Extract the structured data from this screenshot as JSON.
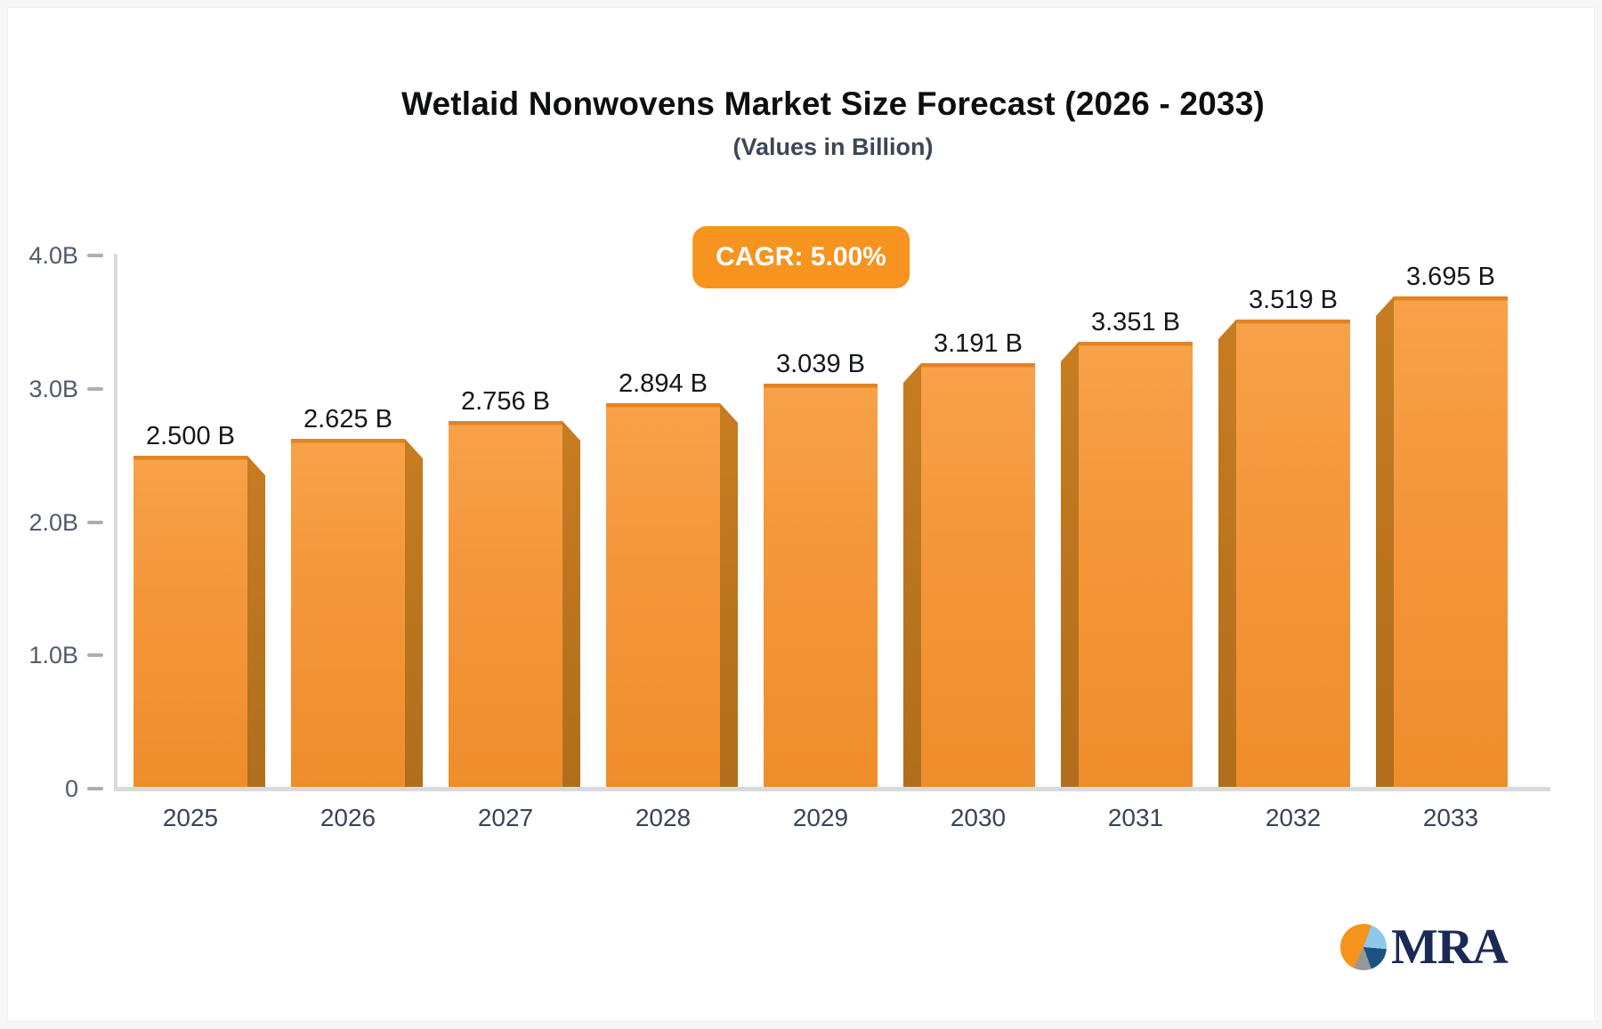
{
  "window": {
    "background": "#f7f7f8",
    "card_background": "#ffffff"
  },
  "header": {
    "title": "Wetlaid Nonwovens Market Size Forecast (2026 - 2033)",
    "subtitle": "(Values in Billion)"
  },
  "cagr_badge": {
    "label": "CAGR: 5.00%",
    "background": "#f6941f",
    "text_color": "#ffffff"
  },
  "chart_data": {
    "type": "bar",
    "title": "Wetlaid Nonwovens Market Size Forecast (2026 - 2033)",
    "subtitle": "(Values in Billion)",
    "unit": "Billion",
    "annotation": "CAGR: 5.00%",
    "categories": [
      "2025",
      "2026",
      "2027",
      "2028",
      "2029",
      "2030",
      "2031",
      "2032",
      "2033"
    ],
    "values": [
      2.5,
      2.625,
      2.756,
      2.894,
      3.039,
      3.191,
      3.351,
      3.519,
      3.695
    ],
    "bar_labels": [
      "2.500 B",
      "2.625 B",
      "2.756 B",
      "2.894 B",
      "3.039 B",
      "3.191 B",
      "3.351 B",
      "3.519 B",
      "3.695 B"
    ],
    "ylim": [
      0,
      4
    ],
    "yticks": [
      {
        "value": 0,
        "label": "0"
      },
      {
        "value": 1,
        "label": "1.0B"
      },
      {
        "value": 2,
        "label": "2.0B"
      },
      {
        "value": 3,
        "label": "3.0B"
      },
      {
        "value": 4,
        "label": "4.0B"
      }
    ],
    "grid": false,
    "legend_position": "none",
    "bar_color_top": "#f7a148",
    "bar_color_bottom": "#ef8d2b",
    "bar_side_color": "#b9731f",
    "bar_top_edge_color": "#e18423",
    "axis_line_color": "#d8dade",
    "tick_color": "#a9afb8",
    "ytick_text_color": "#515b6b",
    "xtick_text_color": "#3a4457",
    "bar_label_text_color": "#14171d"
  },
  "logo": {
    "text": "MRA",
    "text_color": "#1b2a55",
    "pie_start_angle": 20,
    "pie_segments": [
      {
        "name": "light-blue",
        "color": "#8fc9e9",
        "sweep": 75
      },
      {
        "name": "navy",
        "color": "#1c5380",
        "sweep": 65
      },
      {
        "name": "gray",
        "color": "#97989c",
        "sweep": 45
      },
      {
        "name": "orange",
        "color": "#f6921e",
        "sweep": 175
      }
    ]
  }
}
